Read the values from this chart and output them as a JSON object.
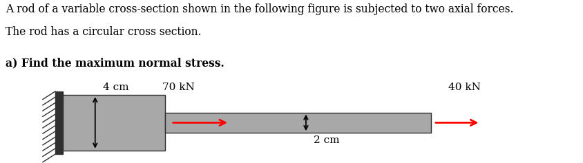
{
  "text_line1": "A rod of a variable cross-section shown in the following figure is subjected to two axial forces.",
  "text_line2": "The rod has a circular cross section.",
  "text_line3": "a) Find the maximum normal stress.",
  "rod_color": "#a8a8a8",
  "rod_edge_color": "#303030",
  "wall_color": "#303030",
  "hatch_color": "#303030",
  "label_4cm": "4 cm",
  "label_70kN": "70 kN",
  "label_40kN": "40 kN",
  "label_2cm": "2 cm",
  "label_fontsize": 11,
  "text_fontsize": 11.2,
  "bold_label_fontsize": 11.2
}
